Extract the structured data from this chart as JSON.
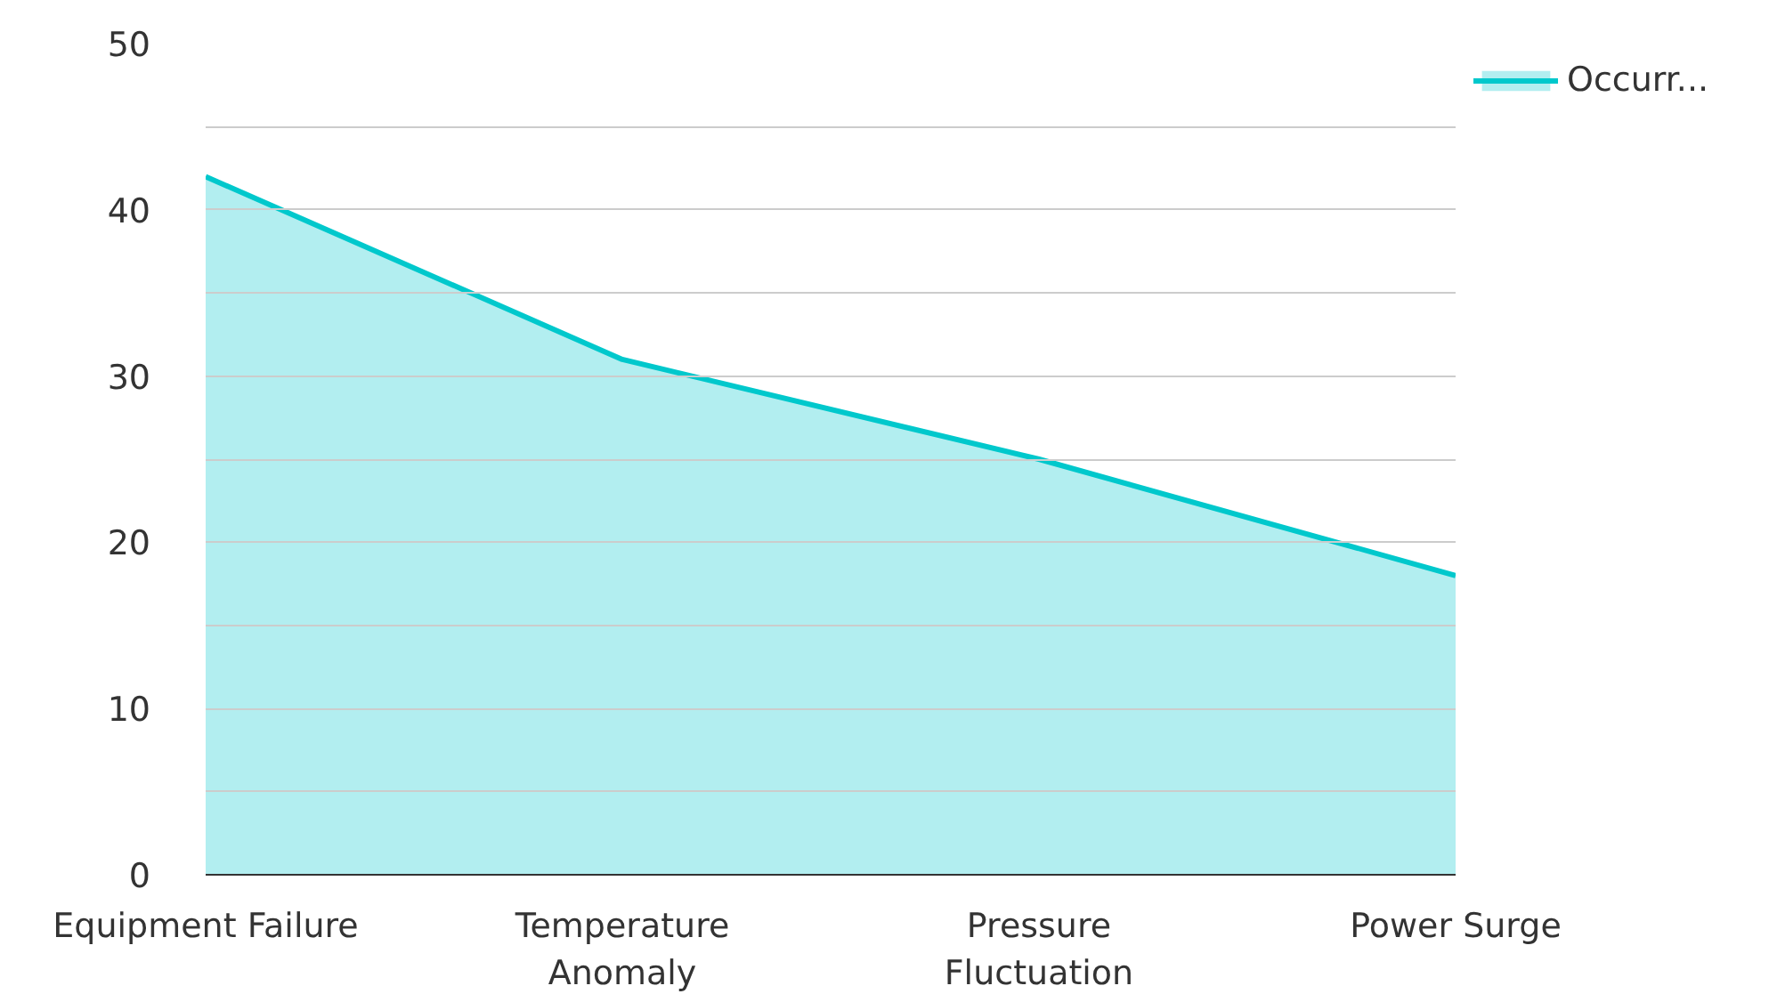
{
  "chart_data": {
    "type": "area",
    "categories": [
      "Equipment Failure",
      "Temperature Anomaly",
      "Pressure Fluctuation",
      "Power Surge"
    ],
    "series": [
      {
        "name": "Occurr...",
        "color": "#00c8cc",
        "values": [
          42,
          31,
          25,
          18
        ]
      }
    ],
    "ylim": [
      0,
      50
    ],
    "yticks": [
      0,
      {
        "value": 5,
        "label": null
      },
      10,
      {
        "value": 15,
        "label": null
      },
      20,
      {
        "value": 25,
        "label": null
      },
      30,
      {
        "value": 35,
        "label": null
      },
      40,
      {
        "value": 45,
        "label": null
      },
      50
    ],
    "grid": "y",
    "legend": "top right"
  }
}
